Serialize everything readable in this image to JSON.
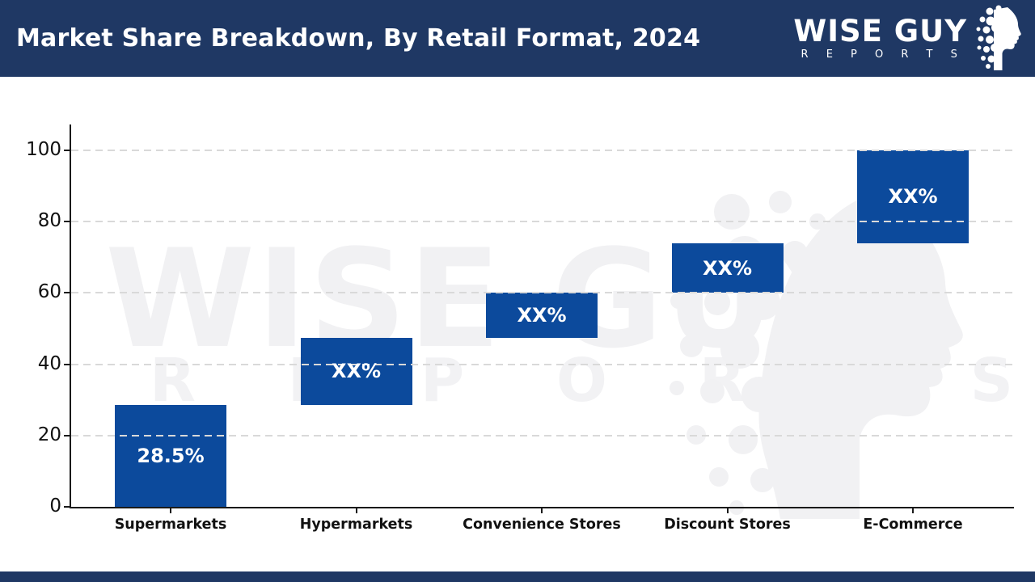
{
  "header": {
    "title": "Market Share Breakdown, By Retail Format, 2024",
    "logo": {
      "line1": "WISE GUY",
      "line2": "R E P O R T S"
    }
  },
  "watermark": {
    "line1": "WISE GUY",
    "line2": "R E P O R T S"
  },
  "colors": {
    "header_bg": "#1f3864",
    "bar": "#0c4a9c",
    "gridline": "#d9d9d9",
    "watermark": "#f1f1f3",
    "bar_label_text": "#ffffff",
    "axis": "#1a1a1a"
  },
  "chart_data": {
    "type": "bar",
    "subtype": "waterfall",
    "title": "Market Share Breakdown, By Retail Format, 2024",
    "xlabel": "",
    "ylabel": "",
    "categories": [
      "Supermarkets",
      "Hypermarkets",
      "Convenience Stores",
      "Discount Stores",
      "E-Commerce"
    ],
    "segments": [
      {
        "category": "Supermarkets",
        "start": 0,
        "end": 28.5,
        "increment": 28.5,
        "label": "28.5%"
      },
      {
        "category": "Hypermarkets",
        "start": 28.5,
        "end": 47.5,
        "increment": 19,
        "label": "XX%"
      },
      {
        "category": "Convenience Stores",
        "start": 47.5,
        "end": 60,
        "increment": 12.5,
        "label": "XX%"
      },
      {
        "category": "Discount Stores",
        "start": 60,
        "end": 74,
        "increment": 14,
        "label": "XX%"
      },
      {
        "category": "E-Commerce",
        "start": 74,
        "end": 100,
        "increment": 26,
        "label": "XX%"
      }
    ],
    "yticks": [
      0,
      20,
      40,
      60,
      80,
      100
    ],
    "ylim": [
      0,
      107
    ],
    "grid": "horizontal-dashed",
    "legend": "none",
    "bar_color": "#0c4a9c"
  }
}
